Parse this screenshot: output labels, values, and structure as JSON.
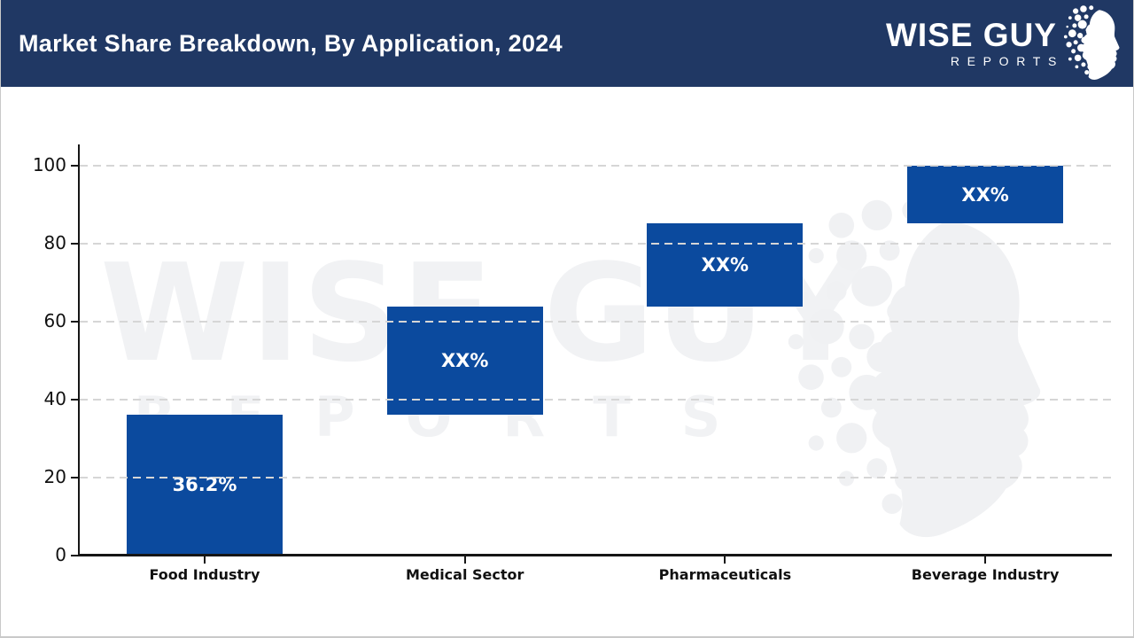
{
  "header": {
    "title": "Market Share Breakdown, By Application, 2024",
    "logo": {
      "name": "WISE GUY",
      "sub": "REPORTS"
    }
  },
  "watermark": {
    "line1": "WISE GUY",
    "line2": "REPORTS"
  },
  "colors": {
    "header_bg": "#203864",
    "bar": "#0b4a9e",
    "bar_label": "#ffffff",
    "grid": "#d6d6d6",
    "axis": "#161616",
    "watermark": "#f1f2f4"
  },
  "chart_data": {
    "type": "bar",
    "subtype": "waterfall",
    "title": "Market Share Breakdown, By Application, 2024",
    "categories": [
      "Food Industry",
      "Medical Sector",
      "Pharmaceuticals",
      "Beverage Industry"
    ],
    "segments": [
      {
        "category": "Food Industry",
        "start": 0,
        "end": 36.2,
        "label": "36.2%"
      },
      {
        "category": "Medical Sector",
        "start": 36.2,
        "end": 63.8,
        "label": "XX%"
      },
      {
        "category": "Pharmaceuticals",
        "start": 63.8,
        "end": 85.2,
        "label": "XX%"
      },
      {
        "category": "Beverage Industry",
        "start": 85.2,
        "end": 100,
        "label": "XX%"
      }
    ],
    "yticks": [
      0,
      20,
      40,
      60,
      80,
      100
    ],
    "ylim": [
      0,
      105.5
    ],
    "xlabel": "",
    "ylabel": "",
    "grid": "horizontal-dashed-over-bars",
    "legend": "none"
  }
}
